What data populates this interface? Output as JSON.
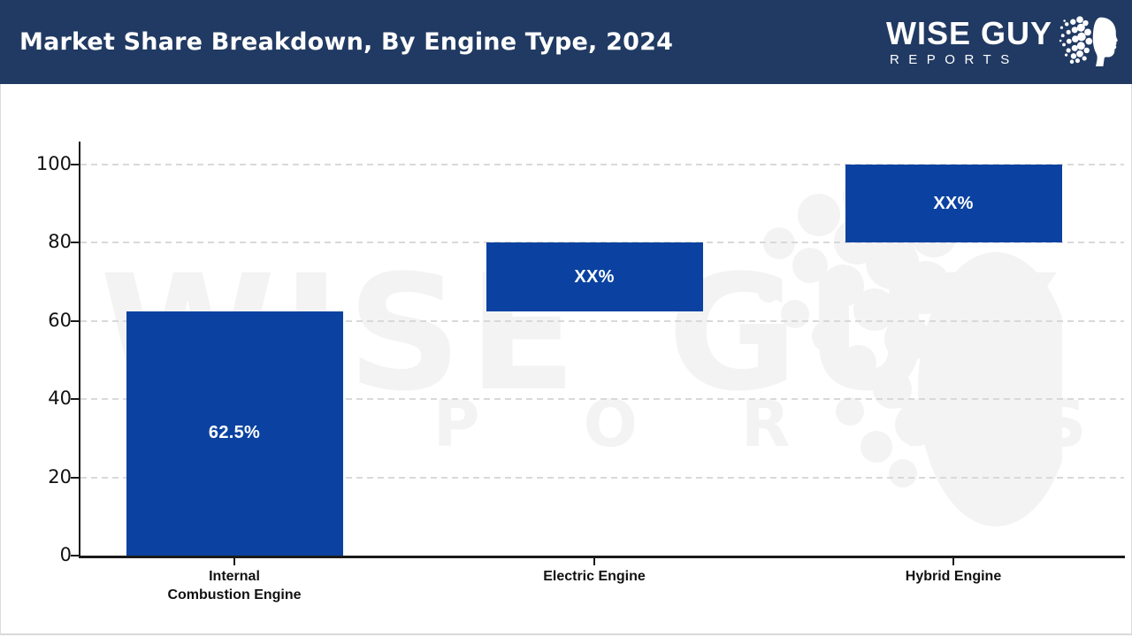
{
  "header": {
    "title": "Market Share Breakdown, By Engine Type, 2024",
    "logo": {
      "line1": "WISE GUY",
      "line2": "REPORTS"
    }
  },
  "watermark": {
    "line1": "WISE GUY",
    "line2": "R E P O R T S"
  },
  "chart_data": {
    "type": "bar",
    "subtype": "waterfall",
    "title": "Market Share Breakdown, By Engine Type, 2024",
    "categories": [
      "Internal Combustion Engine",
      "Electric Engine",
      "Hybrid Engine"
    ],
    "category_display": [
      [
        "Internal",
        "Combustion Engine"
      ],
      [
        "Electric Engine"
      ],
      [
        "Hybrid Engine"
      ]
    ],
    "segments": [
      {
        "category": "Internal Combustion Engine",
        "start": 0,
        "end": 62.5,
        "label": "62.5%"
      },
      {
        "category": "Electric Engine",
        "start": 62.5,
        "end": 80,
        "label": "XX%"
      },
      {
        "category": "Hybrid Engine",
        "start": 80,
        "end": 100,
        "label": "XX%"
      }
    ],
    "xlabel": "",
    "ylabel": "",
    "yticks": [
      0,
      20,
      40,
      60,
      80,
      100
    ],
    "ylim": [
      0,
      106
    ],
    "grid": "horizontal-dashed",
    "legend": "none",
    "colors": {
      "bar": "#0b42a1",
      "bar_label": "#ffffff",
      "axis": "#1a1a1a",
      "grid": "#d9d9d9",
      "tick_label": "#111111"
    }
  },
  "colors": {
    "header_bg": "#213a63",
    "page_bg": "#ffffff",
    "bottom_border": "#d9d9d9",
    "watermark": "#f3f3f3"
  }
}
